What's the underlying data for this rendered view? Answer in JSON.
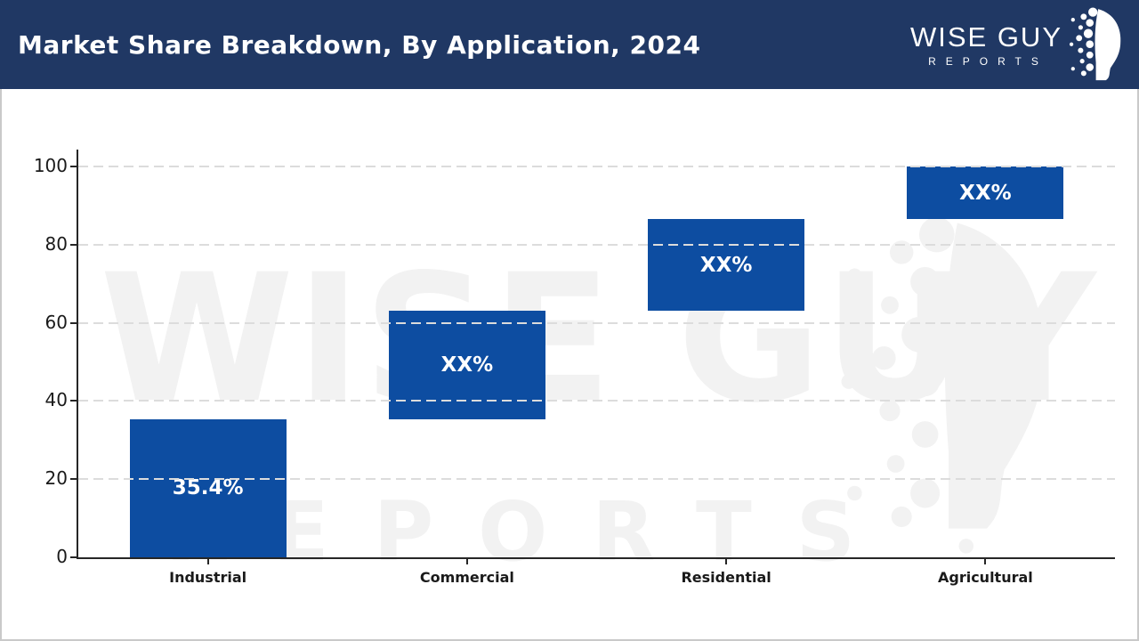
{
  "header": {
    "title": "Market Share Breakdown, By Application, 2024",
    "background_color": "#203864",
    "logo": {
      "line1": "WISE GUY",
      "line2": "REPORTS"
    }
  },
  "watermark": {
    "line1": "WISE GUY",
    "line2": "REPORTS"
  },
  "chart_data": {
    "type": "bar",
    "subtype": "floating-waterfall",
    "title": "Market Share Breakdown, By Application, 2024",
    "categories": [
      "Industrial",
      "Commercial",
      "Residential",
      "Agricultural"
    ],
    "series": [
      {
        "name": "Market Share (%)",
        "segments": [
          {
            "category": "Industrial",
            "start": 0,
            "end": 35.4,
            "label": "35.4%"
          },
          {
            "category": "Commercial",
            "start": 35.4,
            "end": 63.0,
            "label": "XX%"
          },
          {
            "category": "Residential",
            "start": 63.0,
            "end": 86.5,
            "label": "XX%"
          },
          {
            "category": "Agricultural",
            "start": 86.5,
            "end": 100,
            "label": "XX%"
          }
        ]
      }
    ],
    "xlabel": "",
    "ylabel": "",
    "ylim": [
      0,
      100
    ],
    "yticks": [
      0,
      20,
      40,
      60,
      80,
      100
    ],
    "grid": "horizontal-dashed-over-bars",
    "legend": "none",
    "bar_color": "#0d4da1",
    "bar_label_color": "#ffffff",
    "grid_color": "#dcdcdc",
    "axis_color": "#262626"
  }
}
